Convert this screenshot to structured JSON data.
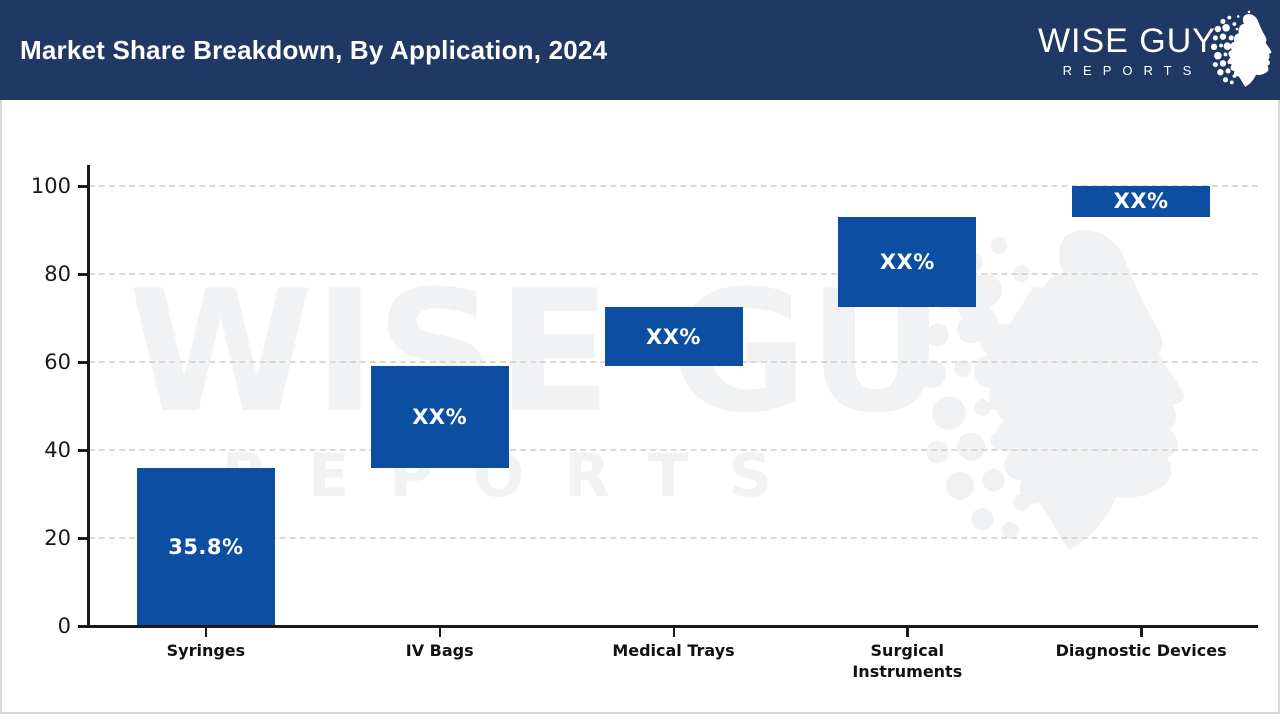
{
  "header": {
    "title": "Market Share Breakdown, By Application, 2024",
    "logo": {
      "name": "WISE GUY",
      "subtitle": "REPORTS"
    }
  },
  "watermark": {
    "line1": "WISE GUY",
    "line2": "REPORTS"
  },
  "colors": {
    "header_bg": "#1f3864",
    "bar_blue": "#0b4ea2",
    "axis_black": "#1a1a1a",
    "grid_gray": "#d9d9d9",
    "watermark_gray": "#f0f1f3",
    "border_gray": "#d9d9d9",
    "bar_label_white": "#ffffff"
  },
  "chart_data": {
    "type": "bar",
    "variant": "waterfall",
    "title": "Market Share Breakdown, By Application, 2024",
    "categories": [
      "Syringes",
      "IV Bags",
      "Medical Trays",
      "Surgical Instruments",
      "Diagnostic Devices"
    ],
    "xtick_labels": [
      "Syringes",
      "IV Bags",
      "Medical Trays",
      "Surgical\nInstruments",
      "Diagnostic Devices"
    ],
    "segments": [
      {
        "category": "Syringes",
        "start": 0,
        "end": 35.8,
        "label": "35.8%"
      },
      {
        "category": "IV Bags",
        "start": 35.8,
        "end": 59,
        "label": "XX%"
      },
      {
        "category": "Medical Trays",
        "start": 59,
        "end": 72.5,
        "label": "XX%"
      },
      {
        "category": "Surgical Instruments",
        "start": 72.5,
        "end": 93,
        "label": "XX%"
      },
      {
        "category": "Diagnostic Devices",
        "start": 93,
        "end": 100,
        "label": "XX%"
      }
    ],
    "ylim": [
      0,
      100
    ],
    "yticks": [
      0,
      20,
      40,
      60,
      80,
      100
    ],
    "grid": true,
    "legend": false,
    "xlabel": "",
    "ylabel": ""
  }
}
